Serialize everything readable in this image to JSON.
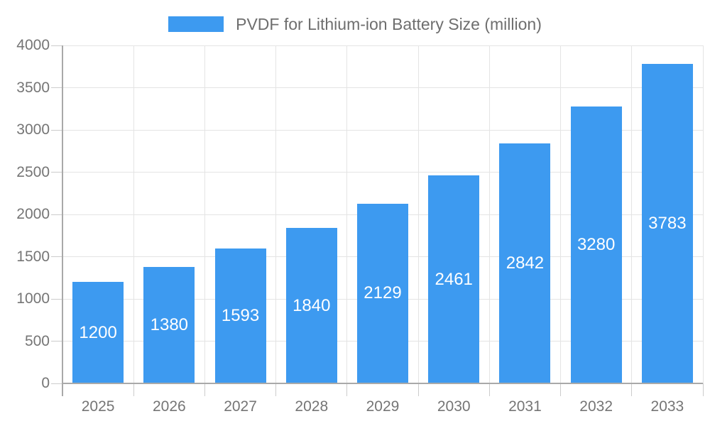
{
  "legend": {
    "label": "PVDF for Lithium-ion Battery Size (million)"
  },
  "colors": {
    "bar": "#3D9AF0",
    "value_label": "#FFFFFF",
    "axis_label": "#757575",
    "legend_text": "#6E6E6E",
    "gridline": "#E4E4E4",
    "axis_line": "#A9A9A9",
    "tick": "#CCCCCC",
    "background": "#FFFFFF"
  },
  "chart_data": {
    "type": "bar",
    "title": "",
    "xlabel": "",
    "ylabel": "",
    "categories": [
      "2025",
      "2026",
      "2027",
      "2028",
      "2029",
      "2030",
      "2031",
      "2032",
      "2033"
    ],
    "series": [
      {
        "name": "PVDF for Lithium-ion Battery Size (million)",
        "values": [
          1200,
          1380,
          1593,
          1840,
          2129,
          2461,
          2842,
          3280,
          3783
        ]
      }
    ],
    "ylim": [
      0,
      4000
    ],
    "yticks": [
      0,
      500,
      1000,
      1500,
      2000,
      2500,
      3000,
      3500,
      4000
    ],
    "grid": true,
    "legend_position": "top",
    "value_label_position": "inside-center"
  }
}
